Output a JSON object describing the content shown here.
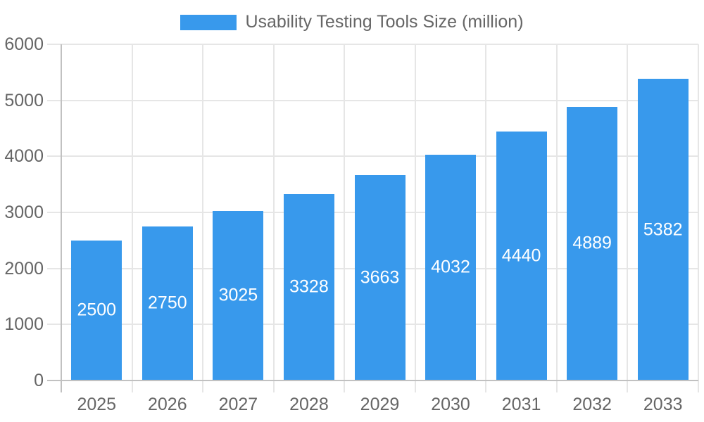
{
  "chart_data": {
    "type": "bar",
    "title": "Usability Testing Tools Size (million)",
    "legend": {
      "position": "top",
      "label": "Usability Testing Tools Size (million)"
    },
    "categories": [
      "2025",
      "2026",
      "2027",
      "2028",
      "2029",
      "2030",
      "2031",
      "2032",
      "2033"
    ],
    "series": [
      {
        "name": "Usability Testing Tools Size (million)",
        "values": [
          2500,
          2750,
          3025,
          3328,
          3663,
          4032,
          4440,
          4889,
          5382
        ]
      }
    ],
    "xlabel": "",
    "ylabel": "",
    "ylim": [
      0,
      6000
    ],
    "ytick_step": 1000,
    "ytick_labels": [
      "0",
      "1000",
      "2000",
      "3000",
      "4000",
      "5000",
      "6000"
    ],
    "grid": true,
    "bar_value_labels_inside": true,
    "colors": {
      "bar": "#3899ec",
      "bar_label_text": "#ffffff",
      "grid_line": "#e6e6e6",
      "axis_line": "#c1c1c1",
      "tick_text": "#666666",
      "legend_text": "#666666",
      "background": "#ffffff"
    }
  }
}
